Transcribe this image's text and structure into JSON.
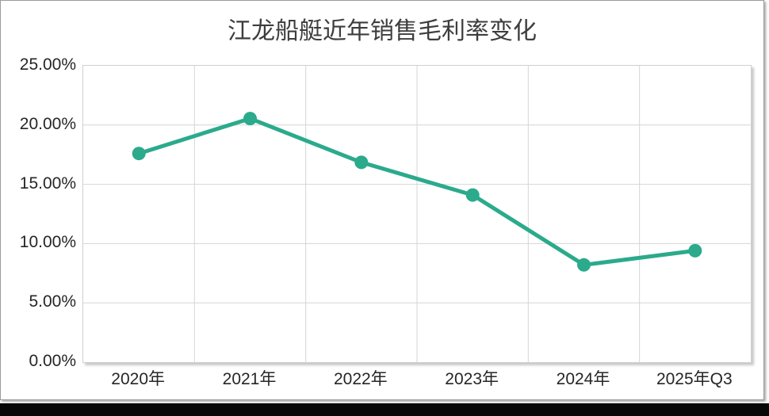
{
  "chart_data": {
    "type": "line",
    "title": "江龙船艇近年销售毛利率变化",
    "categories": [
      "2020年",
      "2021年",
      "2022年",
      "2023年",
      "2024年",
      "2025年Q3"
    ],
    "values": [
      17.6,
      20.55,
      16.85,
      14.1,
      8.2,
      9.4
    ],
    "unit": "%",
    "xlabel": "",
    "ylabel": "",
    "ylim": [
      0,
      25
    ],
    "y_tick_step": 5,
    "y_tick_labels": [
      "0.00%",
      "5.00%",
      "10.00%",
      "15.00%",
      "20.00%",
      "25.00%"
    ],
    "grid": true,
    "legend_position": "none",
    "line_color": "#2baa8c",
    "marker": "circle",
    "gridline_color": "#d6d6d6",
    "title_color": "#3d3d3d",
    "tick_label_color": "#262626"
  }
}
